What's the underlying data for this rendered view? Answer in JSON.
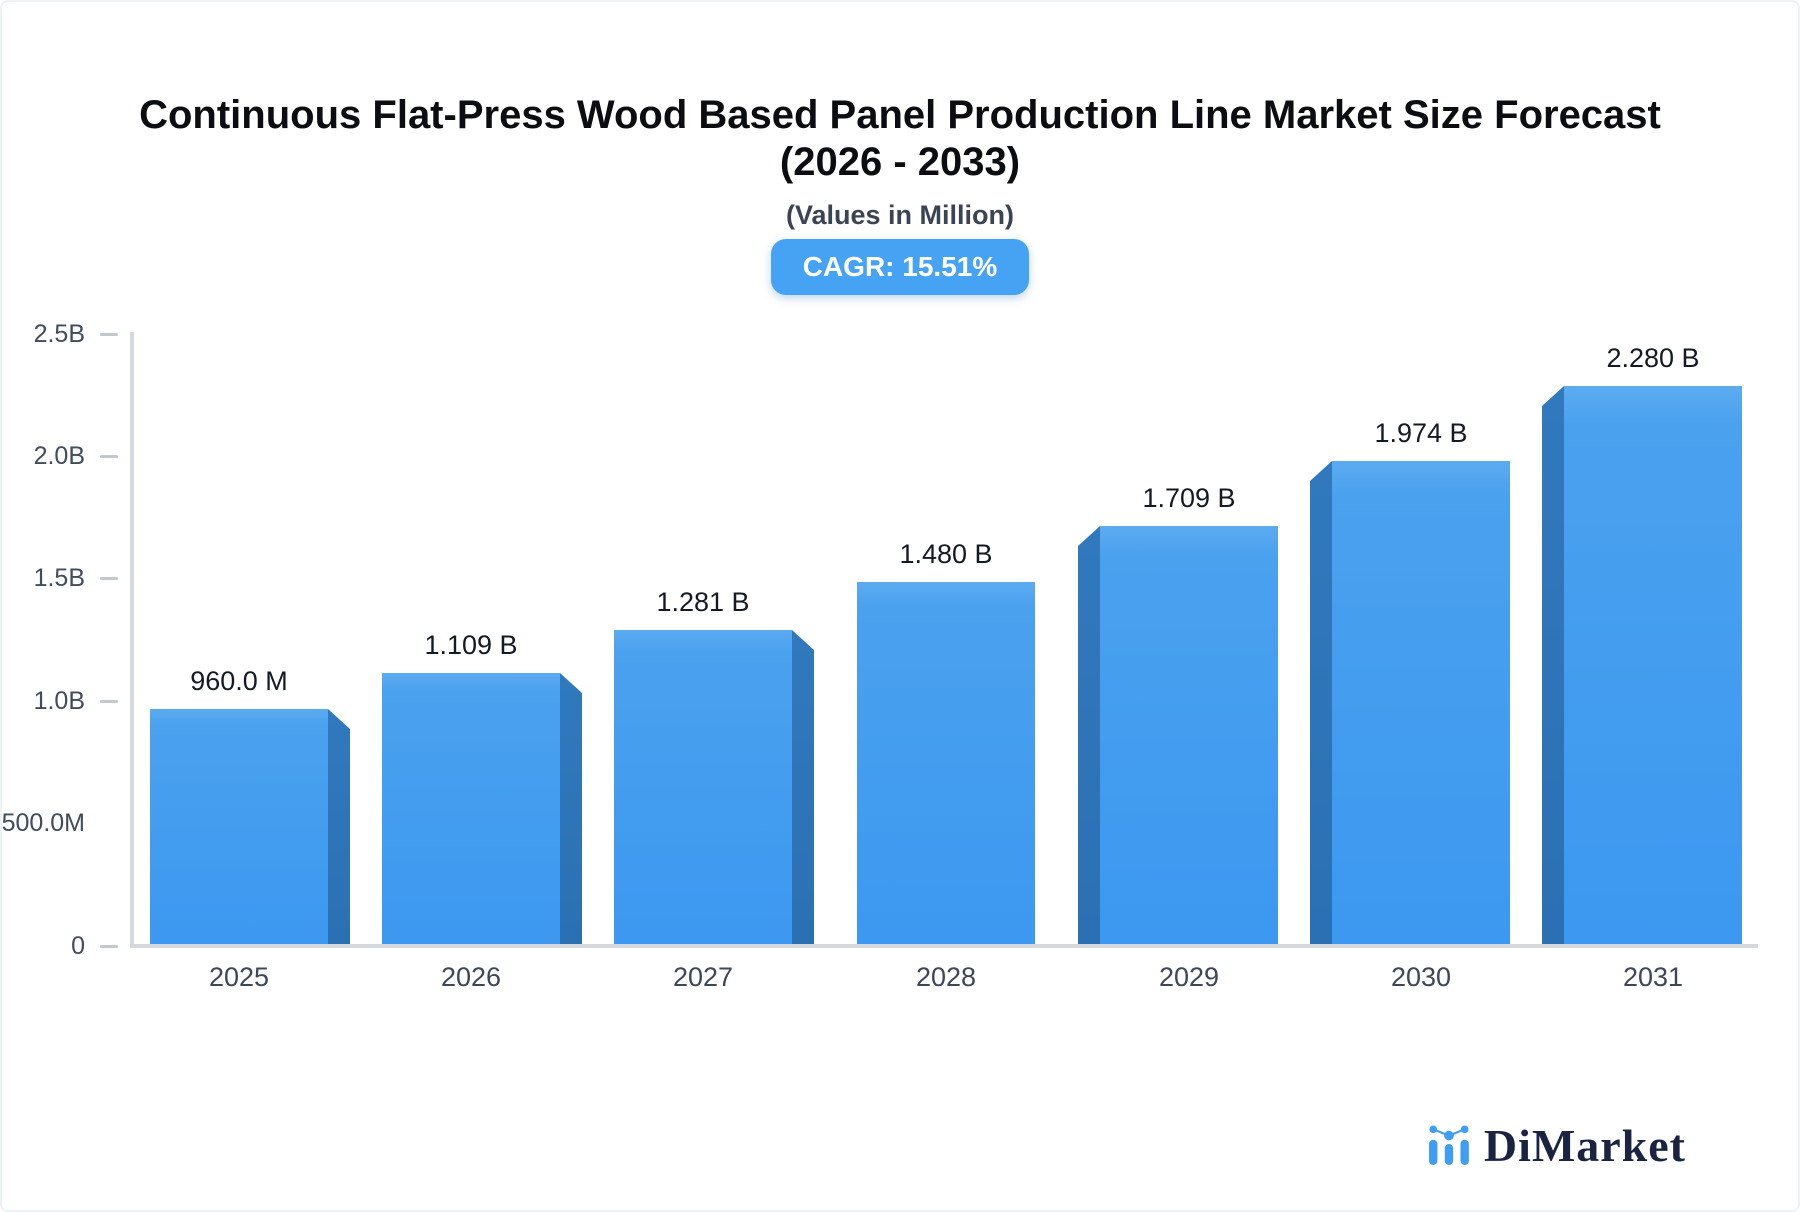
{
  "header": {
    "title_line1": "Continuous Flat-Press Wood Based Panel Production Line Market Size Forecast",
    "title_line2": "(2026 - 2033)",
    "subtitle": "(Values in Million)",
    "cagr_label": "CAGR: 15.51%"
  },
  "chart_data": {
    "type": "bar",
    "title": "Continuous Flat-Press Wood Based Panel Production Line Market Size Forecast (2026 - 2033)",
    "subtitle": "(Values in Million)",
    "unit": "Million",
    "categories": [
      "2025",
      "2026",
      "2027",
      "2028",
      "2029",
      "2030",
      "2031"
    ],
    "values_in_millions": [
      960,
      1109,
      1281,
      1480,
      1709,
      1974,
      2280
    ],
    "value_labels": [
      "960.0 M",
      "1.109 B",
      "1.281 B",
      "1.480 B",
      "1.709 B",
      "1.974 B",
      "2.280 B"
    ],
    "cagr_percent": 15.51,
    "ylim": [
      0,
      2500
    ],
    "y_ticks": [
      {
        "value": 0,
        "label": "0",
        "dash": true
      },
      {
        "value": 500,
        "label": "500.0M",
        "dash": false
      },
      {
        "value": 1000,
        "label": "1.0B",
        "dash": true
      },
      {
        "value": 1500,
        "label": "1.5B",
        "dash": true
      },
      {
        "value": 2000,
        "label": "2.0B",
        "dash": true
      },
      {
        "value": 2500,
        "label": "2.5B",
        "dash": true
      }
    ],
    "grid": false,
    "legend": false,
    "bar_style": "3d-extruded-toward-center"
  },
  "colors": {
    "accent_badge": "#46a3f3",
    "bar_face_top": "#4aa1ee",
    "bar_face_bottom": "#3c98f0",
    "bar_side": "#2d74b8",
    "axis_line": "#d5d8dd",
    "tick_mark": "#c3c7ce",
    "brand_navy": "#1a2340",
    "brand_blue": "#3f9df4"
  },
  "branding": {
    "logo_text": "DiMarket",
    "logo_icon": "bar-chart-dots-icon"
  }
}
